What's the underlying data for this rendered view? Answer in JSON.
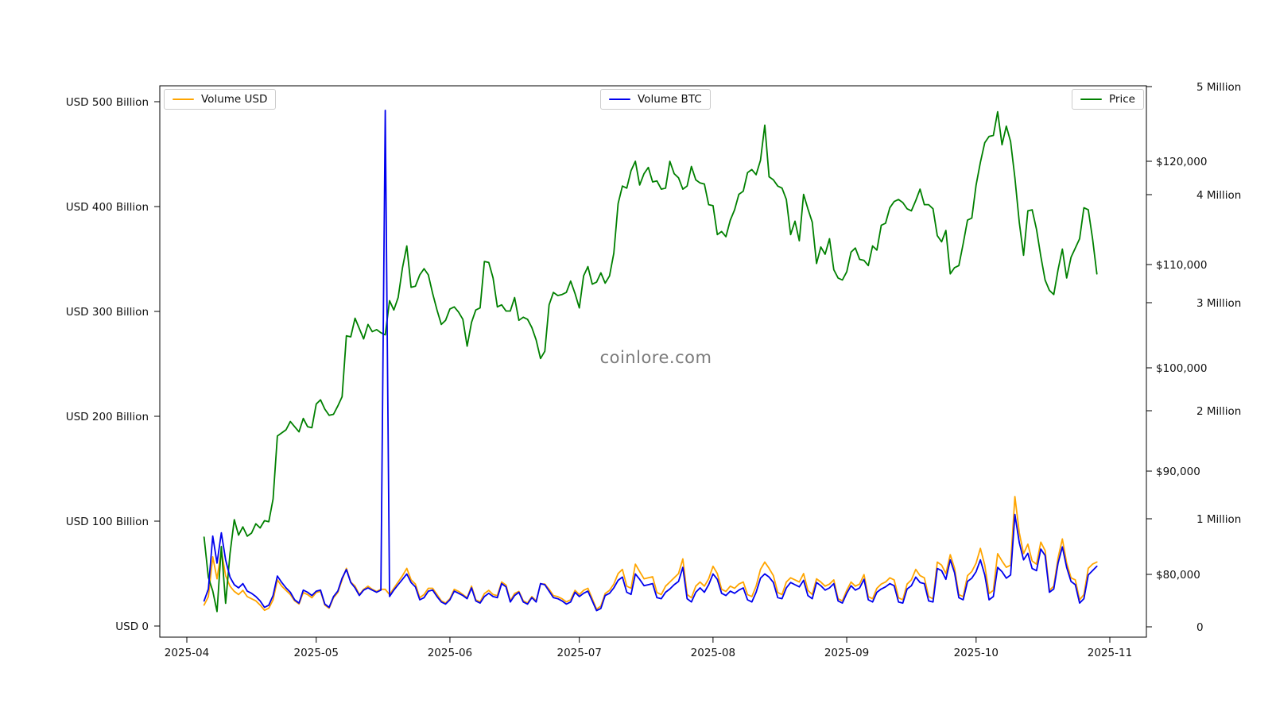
{
  "watermark": "coinlore.com",
  "chart_data": {
    "type": "line",
    "title": "",
    "source_watermark": "coinlore.com",
    "x_axis": {
      "kind": "date",
      "tick_labels": [
        "2025-04",
        "2025-05",
        "2025-06",
        "2025-07",
        "2025-08",
        "2025-09",
        "2025-10",
        "2025-11"
      ],
      "ticks": [
        {
          "day": 0,
          "label": "2025-04"
        },
        {
          "day": 30,
          "label": "2025-05"
        },
        {
          "day": 61,
          "label": "2025-06"
        },
        {
          "day": 91,
          "label": "2025-07"
        },
        {
          "day": 122,
          "label": "2025-08"
        },
        {
          "day": 153,
          "label": "2025-09"
        },
        {
          "day": 183,
          "label": "2025-10"
        },
        {
          "day": 214,
          "label": "2025-11"
        }
      ],
      "data_start_date": "2025-04-05",
      "data_end_date": "2025-10-29",
      "interval": "daily"
    },
    "axes": {
      "left_volume_usd": {
        "unit": "billion USD",
        "range": [
          0,
          500
        ],
        "ticks": [
          {
            "value": 0,
            "label": "USD 0"
          },
          {
            "value": 100,
            "label": "USD 100 Billion"
          },
          {
            "value": 200,
            "label": "USD 200 Billion"
          },
          {
            "value": 300,
            "label": "USD 300 Billion"
          },
          {
            "value": 400,
            "label": "USD 400 Billion"
          },
          {
            "value": 500,
            "label": "USD 500 Billion"
          }
        ]
      },
      "right_price": {
        "unit": "USD",
        "range": [
          80000,
          125000
        ],
        "ticks": [
          {
            "value": 80,
            "label": "$80,000"
          },
          {
            "value": 90,
            "label": "$90,000"
          },
          {
            "value": 100,
            "label": "$100,000"
          },
          {
            "value": 110,
            "label": "$110,000"
          },
          {
            "value": 120,
            "label": "$120,000"
          }
        ]
      },
      "right_volume_btc": {
        "unit": "million BTC",
        "range": [
          0,
          5
        ],
        "ticks": [
          {
            "value": 0,
            "label": "0"
          },
          {
            "value": 1,
            "label": "1 Million"
          },
          {
            "value": 2,
            "label": "2 Million"
          },
          {
            "value": 3,
            "label": "3 Million"
          },
          {
            "value": 4,
            "label": "4 Million"
          },
          {
            "value": 5,
            "label": "5 Million"
          }
        ]
      }
    },
    "series_start_day_offset": 4,
    "series": [
      {
        "name": "Volume USD",
        "axis": "left_volume_usd",
        "color": "#FFA500",
        "unit": "billion USD",
        "values": [
          20,
          28,
          66,
          45,
          72,
          48,
          38,
          33,
          30,
          34,
          28,
          26,
          24,
          20,
          15,
          17,
          25,
          44,
          38,
          34,
          30,
          24,
          21,
          32,
          30,
          27,
          32,
          33,
          20,
          17,
          27,
          32,
          44,
          55,
          42,
          38,
          30,
          35,
          38,
          35,
          33,
          35,
          35,
          30,
          36,
          42,
          48,
          55,
          44,
          40,
          27,
          30,
          36,
          36,
          30,
          24,
          22,
          26,
          35,
          33,
          30,
          27,
          38,
          25,
          23,
          31,
          34,
          30,
          29,
          42,
          39,
          24,
          31,
          33,
          24,
          22,
          28,
          24,
          40,
          40,
          35,
          29,
          28,
          26,
          23,
          25,
          34,
          30,
          34,
          36,
          26,
          16,
          19,
          31,
          34,
          40,
          50,
          54,
          38,
          36,
          59,
          52,
          45,
          46,
          47,
          32,
          30,
          38,
          42,
          46,
          50,
          64,
          30,
          27,
          38,
          42,
          38,
          45,
          57,
          50,
          35,
          33,
          38,
          36,
          40,
          42,
          30,
          28,
          38,
          54,
          61,
          55,
          48,
          32,
          30,
          42,
          46,
          44,
          42,
          50,
          34,
          30,
          45,
          42,
          38,
          40,
          44,
          26,
          24,
          34,
          42,
          38,
          40,
          49,
          28,
          26,
          36,
          40,
          42,
          46,
          44,
          27,
          25,
          40,
          44,
          54,
          48,
          46,
          28,
          26,
          61,
          58,
          50,
          68,
          55,
          30,
          28,
          48,
          52,
          60,
          74,
          58,
          31,
          34,
          69,
          62,
          56,
          58,
          123.5,
          89,
          69,
          78,
          62,
          59,
          80,
          72,
          34,
          38,
          65,
          83,
          60,
          46,
          44,
          25,
          30,
          55,
          59,
          61
        ]
      },
      {
        "name": "Volume BTC",
        "axis": "right_volume_btc",
        "color": "#0000EE",
        "unit": "million BTC",
        "values": [
          0.24,
          0.35,
          0.84,
          0.59,
          0.87,
          0.62,
          0.46,
          0.39,
          0.36,
          0.4,
          0.33,
          0.31,
          0.28,
          0.24,
          0.18,
          0.2,
          0.29,
          0.47,
          0.41,
          0.36,
          0.32,
          0.25,
          0.22,
          0.34,
          0.32,
          0.29,
          0.33,
          0.34,
          0.21,
          0.18,
          0.28,
          0.33,
          0.45,
          0.53,
          0.41,
          0.36,
          0.29,
          0.34,
          0.36,
          0.34,
          0.32,
          0.34,
          4.78,
          0.28,
          0.34,
          0.39,
          0.44,
          0.49,
          0.41,
          0.37,
          0.25,
          0.27,
          0.33,
          0.34,
          0.28,
          0.23,
          0.21,
          0.25,
          0.33,
          0.31,
          0.29,
          0.26,
          0.36,
          0.24,
          0.22,
          0.28,
          0.31,
          0.28,
          0.27,
          0.4,
          0.37,
          0.23,
          0.29,
          0.32,
          0.23,
          0.21,
          0.27,
          0.23,
          0.4,
          0.39,
          0.33,
          0.27,
          0.26,
          0.24,
          0.21,
          0.23,
          0.32,
          0.28,
          0.31,
          0.33,
          0.24,
          0.15,
          0.17,
          0.29,
          0.31,
          0.36,
          0.43,
          0.46,
          0.32,
          0.3,
          0.49,
          0.44,
          0.38,
          0.39,
          0.4,
          0.27,
          0.26,
          0.32,
          0.35,
          0.39,
          0.42,
          0.55,
          0.26,
          0.23,
          0.32,
          0.36,
          0.32,
          0.39,
          0.49,
          0.44,
          0.31,
          0.29,
          0.33,
          0.31,
          0.34,
          0.36,
          0.25,
          0.23,
          0.32,
          0.45,
          0.49,
          0.46,
          0.41,
          0.27,
          0.26,
          0.36,
          0.41,
          0.39,
          0.37,
          0.43,
          0.29,
          0.26,
          0.41,
          0.38,
          0.34,
          0.36,
          0.4,
          0.24,
          0.22,
          0.31,
          0.38,
          0.34,
          0.36,
          0.44,
          0.25,
          0.23,
          0.32,
          0.35,
          0.37,
          0.4,
          0.38,
          0.23,
          0.22,
          0.35,
          0.38,
          0.46,
          0.41,
          0.4,
          0.24,
          0.23,
          0.54,
          0.52,
          0.44,
          0.62,
          0.5,
          0.27,
          0.25,
          0.42,
          0.45,
          0.51,
          0.62,
          0.48,
          0.25,
          0.28,
          0.55,
          0.51,
          0.45,
          0.48,
          1.04,
          0.78,
          0.62,
          0.68,
          0.54,
          0.52,
          0.72,
          0.66,
          0.32,
          0.35,
          0.59,
          0.74,
          0.55,
          0.42,
          0.39,
          0.22,
          0.26,
          0.48,
          0.52,
          0.56
        ]
      },
      {
        "name": "Price",
        "axis": "right_price",
        "color": "#008000",
        "unit": "thousand USD",
        "values": [
          83.6,
          79.7,
          78.4,
          76.4,
          82.7,
          77.2,
          82.0,
          85.3,
          83.8,
          84.6,
          83.7,
          84.0,
          84.9,
          84.5,
          85.2,
          85.1,
          87.3,
          93.4,
          93.7,
          94.0,
          94.8,
          94.3,
          93.8,
          95.1,
          94.3,
          94.2,
          96.5,
          96.9,
          96.0,
          95.4,
          95.5,
          96.3,
          97.2,
          103.1,
          103.0,
          104.8,
          103.8,
          102.8,
          104.2,
          103.5,
          103.7,
          103.4,
          103.2,
          106.5,
          105.6,
          106.8,
          109.7,
          111.8,
          107.8,
          107.9,
          109.0,
          109.6,
          109.0,
          107.2,
          105.6,
          104.2,
          104.6,
          105.7,
          105.9,
          105.4,
          104.7,
          102.1,
          104.4,
          105.6,
          105.8,
          110.3,
          110.2,
          108.7,
          105.9,
          106.1,
          105.5,
          105.5,
          106.8,
          104.6,
          104.9,
          104.7,
          103.9,
          102.7,
          100.9,
          101.6,
          106.1,
          107.3,
          107.0,
          107.1,
          107.3,
          108.4,
          107.2,
          105.8,
          108.9,
          109.8,
          108.1,
          108.3,
          109.2,
          108.2,
          108.9,
          111.1,
          115.9,
          117.6,
          117.4,
          119.1,
          120.0,
          117.7,
          118.8,
          119.4,
          118.0,
          118.1,
          117.3,
          117.4,
          120.0,
          118.8,
          118.4,
          117.3,
          117.6,
          119.5,
          118.2,
          117.9,
          117.8,
          115.8,
          115.7,
          112.9,
          113.2,
          112.7,
          114.3,
          115.3,
          116.8,
          117.1,
          118.9,
          119.2,
          118.7,
          120.1,
          123.5,
          118.5,
          118.2,
          117.6,
          117.4,
          116.3,
          112.9,
          114.2,
          112.3,
          116.8,
          115.4,
          114.1,
          110.1,
          111.7,
          111.0,
          112.5,
          109.5,
          108.7,
          108.5,
          109.3,
          111.2,
          111.6,
          110.5,
          110.4,
          109.9,
          111.8,
          111.4,
          113.8,
          114.0,
          115.5,
          116.1,
          116.3,
          116.0,
          115.4,
          115.2,
          116.2,
          117.3,
          115.8,
          115.8,
          115.4,
          112.8,
          112.2,
          113.3,
          109.1,
          109.7,
          109.9,
          112.0,
          114.3,
          114.5,
          117.7,
          119.9,
          121.8,
          122.4,
          122.5,
          124.8,
          121.6,
          123.4,
          121.9,
          118.4,
          114.1,
          110.9,
          115.2,
          115.3,
          113.4,
          110.8,
          108.5,
          107.5,
          107.1,
          109.5,
          111.5,
          108.7,
          110.7,
          111.6,
          112.5,
          115.5,
          115.3,
          112.5,
          109.1
        ]
      }
    ],
    "legends": [
      {
        "label": "Volume USD",
        "color": "#FFA500"
      },
      {
        "label": "Volume BTC",
        "color": "#0000EE"
      },
      {
        "label": "Price",
        "color": "#008000"
      }
    ],
    "grid": false,
    "background": "#ffffff"
  }
}
